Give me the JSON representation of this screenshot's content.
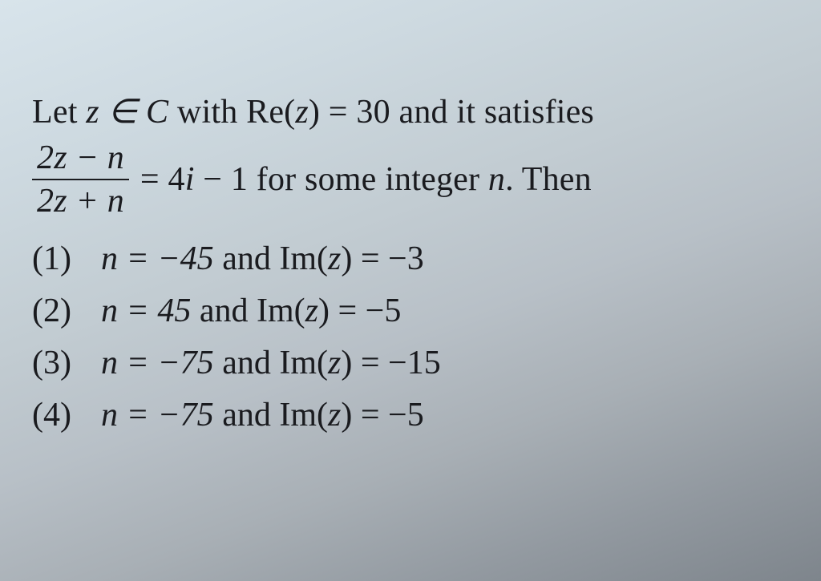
{
  "colors": {
    "text": "#1a1b1f",
    "bg_gradient_top": "#d8e4eb",
    "bg_gradient_bottom": "#7e858c",
    "fraction_bar": "#1a1b1f"
  },
  "typography": {
    "family": "Times New Roman",
    "body_size_pt": 32,
    "line_height": 1.45,
    "italic_vars": true
  },
  "question": {
    "line1_pre": "Let ",
    "line1_zc": "z ∈ C",
    "line1_mid": " with Re(",
    "line1_zvar": "z",
    "line1_post": ") = 30 and it satisfies",
    "frac_num_a": "2z",
    "frac_num_op": " − ",
    "frac_num_b": "n",
    "frac_den_a": "2z",
    "frac_den_op": " + ",
    "frac_den_b": "n",
    "line2_eq": "= 4",
    "line2_i": "i",
    "line2_eq2": " − 1 for some integer ",
    "line2_n": "n",
    "line2_end": ". Then"
  },
  "options": [
    {
      "label": "(1)",
      "n_eq": "n = −45",
      "and": " and Im(",
      "z": "z",
      "im_eq": ") = −3"
    },
    {
      "label": "(2)",
      "n_eq": "n = 45",
      "and": " and Im(",
      "z": "z",
      "im_eq": ") = −5"
    },
    {
      "label": "(3)",
      "n_eq": "n = −75",
      "and": " and Im(",
      "z": "z",
      "im_eq": ") = −15"
    },
    {
      "label": "(4)",
      "n_eq": "n = −75",
      "and": " and Im(",
      "z": "z",
      "im_eq": ") = −5"
    }
  ]
}
